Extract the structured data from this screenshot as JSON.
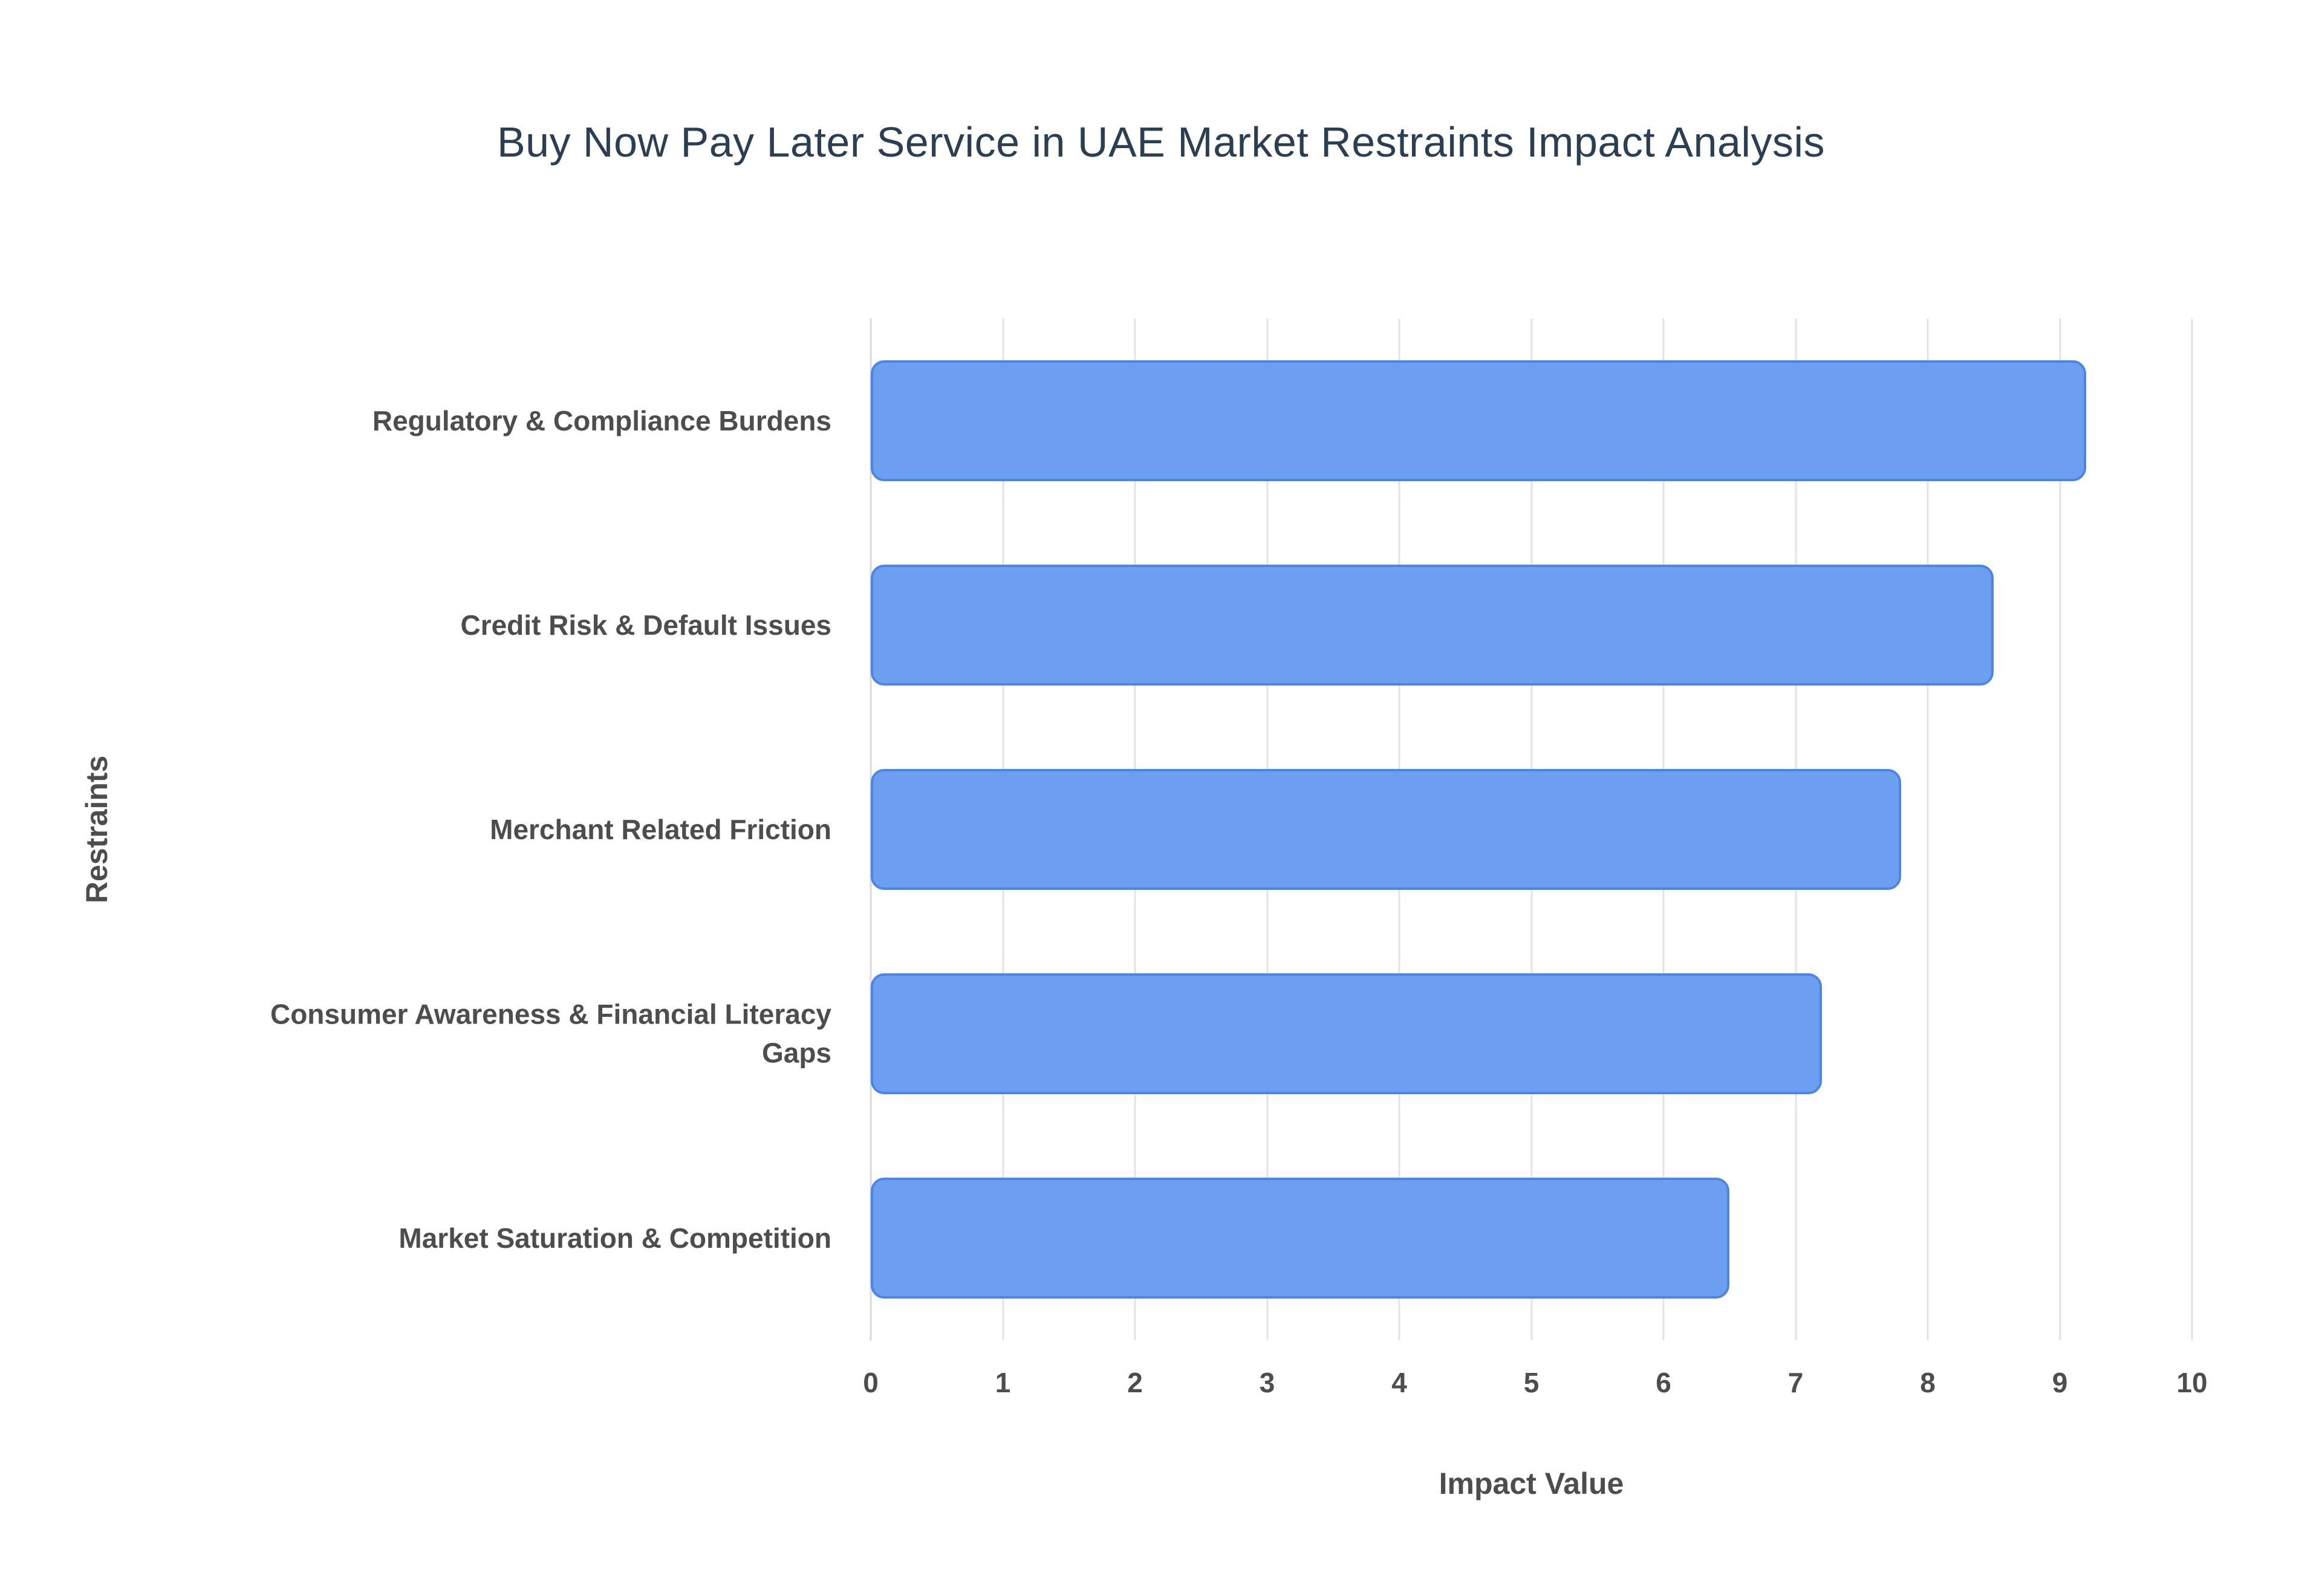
{
  "chart_data": {
    "type": "bar",
    "orientation": "horizontal",
    "title": "Buy Now Pay Later Service in UAE Market Restraints Impact Analysis",
    "xlabel": "Impact Value",
    "ylabel": "Restraints",
    "categories": [
      "Regulatory & Compliance Burdens",
      "Credit Risk & Default Issues",
      "Merchant Related Friction",
      "Consumer Awareness & Financial Literacy Gaps",
      "Market Saturation & Competition"
    ],
    "values": [
      9.2,
      8.5,
      7.8,
      7.2,
      6.5
    ],
    "xlim": [
      0,
      10
    ],
    "xticks": [
      0,
      1,
      2,
      3,
      4,
      5,
      6,
      7,
      8,
      9,
      10
    ],
    "grid": true,
    "legend": false
  },
  "colors": {
    "bar_fill": "#6c9ff0",
    "bar_border": "#4a86e8",
    "title_text": "#2a3f54",
    "axis_text": "#4d4d4d",
    "gridline": "#e3e3e3",
    "background": "#ffffff"
  }
}
